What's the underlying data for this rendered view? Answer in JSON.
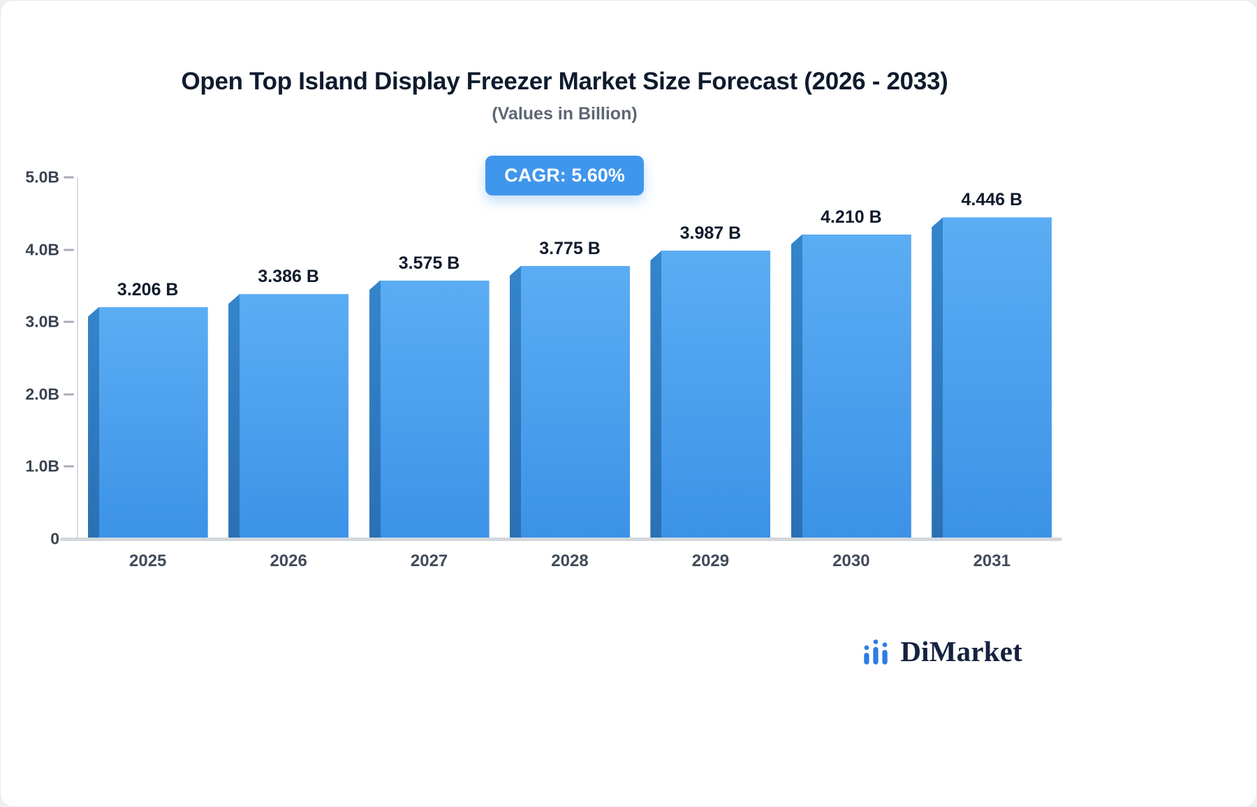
{
  "chart_data": {
    "type": "bar",
    "title": "Open Top Island Display Freezer Market Size Forecast (2026 - 2033)",
    "subtitle": "(Values in Billion)",
    "annotation_badge": "CAGR: 5.60%",
    "categories": [
      "2025",
      "2026",
      "2027",
      "2028",
      "2029",
      "2030",
      "2031"
    ],
    "values": [
      3.206,
      3.386,
      3.575,
      3.775,
      3.987,
      4.21,
      4.446
    ],
    "value_labels": [
      "3.206 B",
      "3.386 B",
      "3.575 B",
      "3.775 B",
      "3.987 B",
      "4.210 B",
      "4.446 B"
    ],
    "xlabel": "",
    "ylabel": "",
    "ylim": [
      0,
      5
    ],
    "y_ticks": [
      "0",
      "1.0B",
      "2.0B",
      "3.0B",
      "4.0B",
      "5.0B"
    ],
    "grid": false,
    "legend": "none",
    "colors": {
      "bar_main": "#3f97ea",
      "bar_main_light": "#5badf3",
      "bar_side_edge": "#2c77bd",
      "badge_bg": "#3f96ec",
      "title_text": "#0f1b2d",
      "subtitle_text": "#5d6673",
      "axis_text": "#3a4350",
      "logo_blue": "#2d7de2",
      "logo_navy": "#15233f"
    }
  },
  "branding": {
    "logo_text": "DiMarket",
    "logo_icon": "bar-chart-icon"
  }
}
